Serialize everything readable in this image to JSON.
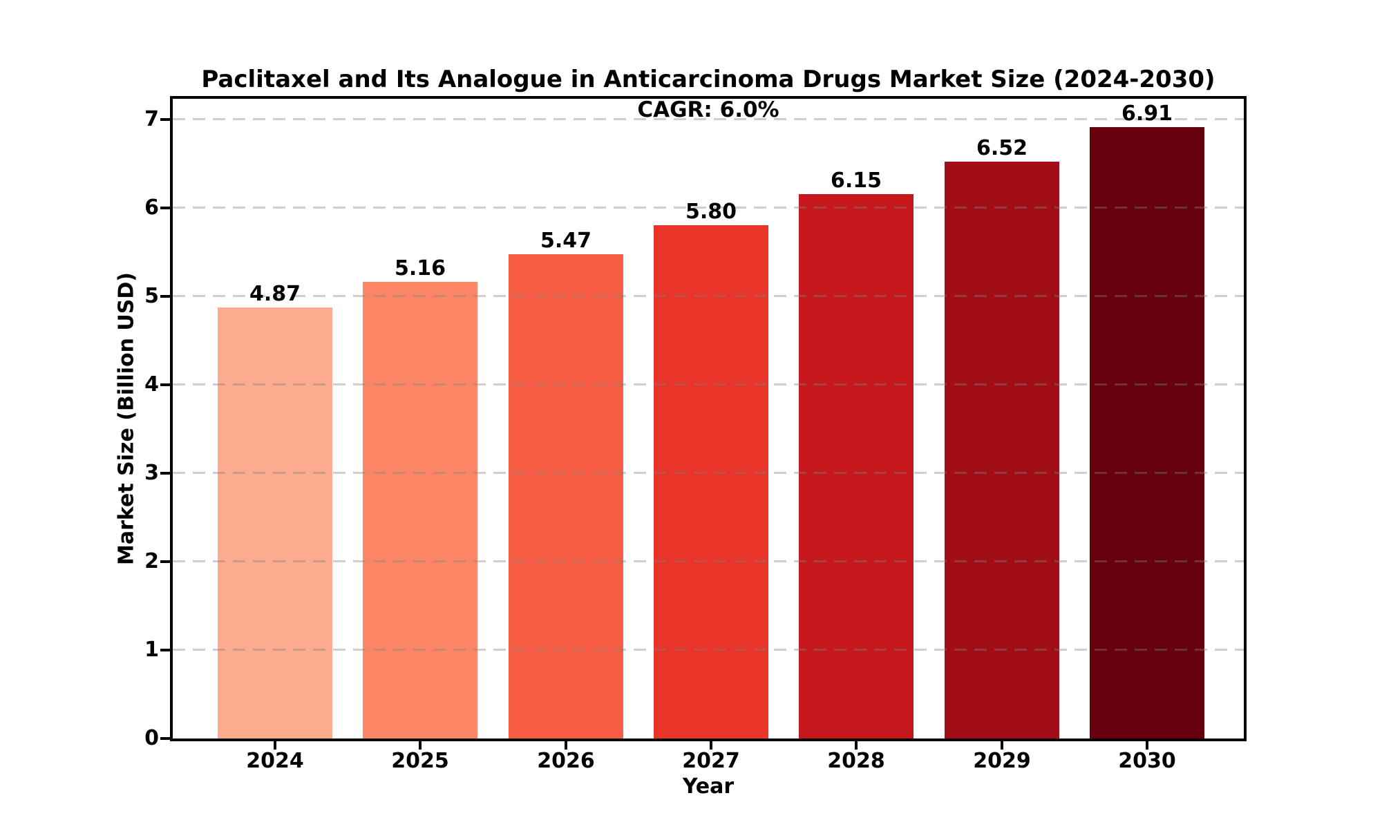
{
  "chart_data": {
    "type": "bar",
    "title": "Paclitaxel and Its Analogue in Anticarcinoma Drugs Market Size (2024-2030)",
    "annotation": "CAGR: 6.0%",
    "xlabel": "Year",
    "ylabel": "Market Size (Billion USD)",
    "categories": [
      "2024",
      "2025",
      "2026",
      "2027",
      "2028",
      "2029",
      "2030"
    ],
    "values": [
      4.87,
      5.16,
      5.47,
      5.8,
      6.15,
      6.52,
      6.91
    ],
    "value_labels": [
      "4.87",
      "5.16",
      "5.47",
      "5.80",
      "6.15",
      "6.52",
      "6.91"
    ],
    "bar_colors": [
      "#fcab8f",
      "#fb8565",
      "#f75d42",
      "#e83429",
      "#c6171c",
      "#a10e15",
      "#67000d"
    ],
    "ylim": [
      0,
      7.23
    ],
    "yticks": [
      0,
      1,
      2,
      3,
      4,
      5,
      6,
      7
    ],
    "ytick_labels": [
      "0",
      "1",
      "2",
      "3",
      "4",
      "5",
      "6",
      "7"
    ],
    "grid": {
      "axis": "y",
      "style": "dashed",
      "color": "#808080",
      "alpha": 0.38
    },
    "legend": "none",
    "background_color": "#ffffff",
    "text_color": "#000000"
  }
}
